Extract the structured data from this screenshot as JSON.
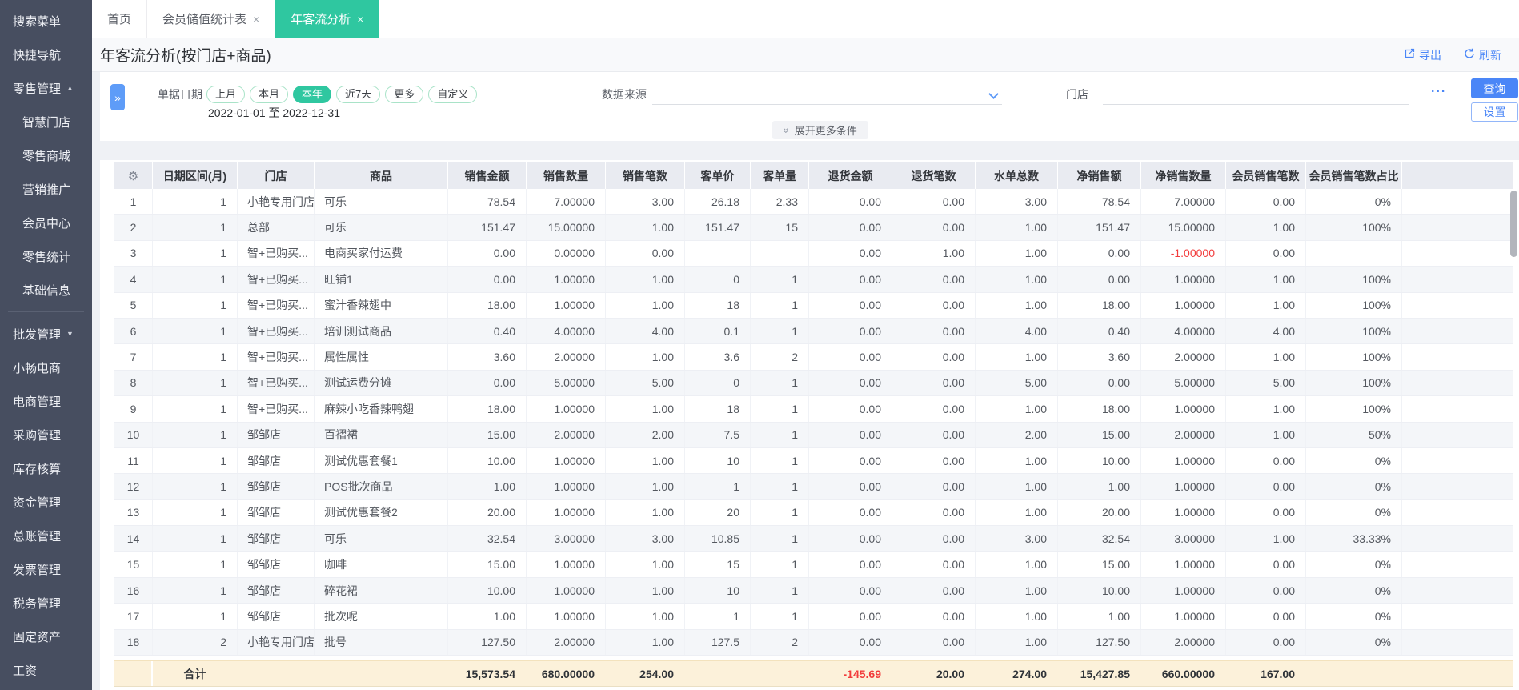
{
  "icons": {
    "close": "×",
    "gear": "⚙",
    "collapse": "»",
    "double_chevron_down": "»"
  },
  "colors": {
    "accent_green": "#2fc7a0",
    "accent_blue": "#4a86f7",
    "negative_red": "#f23c3c",
    "total_row_bg": "#fcf1da",
    "sidebar_bg": "#474e60"
  },
  "sidebar": {
    "items": [
      {
        "label": "搜索菜单"
      },
      {
        "label": "快捷导航"
      },
      {
        "label": "零售管理",
        "arrow": "up"
      },
      {
        "label": "智慧门店",
        "sub": true
      },
      {
        "label": "零售商城",
        "sub": true
      },
      {
        "label": "营销推广",
        "sub": true
      },
      {
        "label": "会员中心",
        "sub": true
      },
      {
        "label": "零售统计",
        "sub": true
      },
      {
        "label": "基础信息",
        "sub": true
      },
      {
        "divider": true
      },
      {
        "label": "批发管理",
        "arrow": "down"
      },
      {
        "label": "小畅电商"
      },
      {
        "label": "电商管理"
      },
      {
        "label": "采购管理"
      },
      {
        "label": "库存核算"
      },
      {
        "label": "资金管理"
      },
      {
        "label": "总账管理"
      },
      {
        "label": "发票管理"
      },
      {
        "label": "税务管理"
      },
      {
        "label": "固定资产"
      },
      {
        "label": "工资"
      }
    ]
  },
  "tabs": [
    {
      "label": "首页",
      "closable": false,
      "active": false
    },
    {
      "label": "会员储值统计表",
      "closable": true,
      "active": false
    },
    {
      "label": "年客流分析",
      "closable": true,
      "active": true
    }
  ],
  "page": {
    "title": "年客流分析(按门店+商品)",
    "export_label": "导出",
    "refresh_label": "刷新"
  },
  "filters": {
    "date_label": "单据日期",
    "date_pills": [
      {
        "label": "上月"
      },
      {
        "label": "本月"
      },
      {
        "label": "本年",
        "selected": true
      },
      {
        "label": "近7天"
      },
      {
        "label": "更多"
      },
      {
        "label": "自定义"
      }
    ],
    "date_range": "2022-01-01 至 2022-12-31",
    "source_label": "数据来源",
    "source_value": "",
    "store_label": "门店",
    "store_value": "",
    "more_ellipsis": "...",
    "search_label": "查询",
    "settings_label": "设置",
    "expand_label": "展开更多条件"
  },
  "table": {
    "columns": [
      "",
      "日期区间(月)",
      "门店",
      "商品",
      "销售金额",
      "销售数量",
      "销售笔数",
      "客单价",
      "客单量",
      "退货金额",
      "退货笔数",
      "水单总数",
      "净销售额",
      "净销售数量",
      "会员销售笔数",
      "会员销售笔数占比"
    ],
    "rows": [
      [
        "1",
        "1",
        "小艳专用门店",
        "可乐",
        "78.54",
        "7.00000",
        "3.00",
        "26.18",
        "2.33",
        "0.00",
        "0.00",
        "3.00",
        "78.54",
        "7.00000",
        "0.00",
        "0%"
      ],
      [
        "2",
        "1",
        "总部",
        "可乐",
        "151.47",
        "15.00000",
        "1.00",
        "151.47",
        "15",
        "0.00",
        "0.00",
        "1.00",
        "151.47",
        "15.00000",
        "1.00",
        "100%"
      ],
      [
        "3",
        "1",
        "智+已购买...",
        "电商买家付运费",
        "0.00",
        "0.00000",
        "0.00",
        "",
        "",
        "0.00",
        "1.00",
        "1.00",
        "0.00",
        {
          "v": "-1.00000",
          "red": true
        },
        "0.00",
        ""
      ],
      [
        "4",
        "1",
        "智+已购买...",
        "旺铺1",
        "0.00",
        "1.00000",
        "1.00",
        "0",
        "1",
        "0.00",
        "0.00",
        "1.00",
        "0.00",
        "1.00000",
        "1.00",
        "100%"
      ],
      [
        "5",
        "1",
        "智+已购买...",
        "蜜汁香辣翅中",
        "18.00",
        "1.00000",
        "1.00",
        "18",
        "1",
        "0.00",
        "0.00",
        "1.00",
        "18.00",
        "1.00000",
        "1.00",
        "100%"
      ],
      [
        "6",
        "1",
        "智+已购买...",
        "培训测试商品",
        "0.40",
        "4.00000",
        "4.00",
        "0.1",
        "1",
        "0.00",
        "0.00",
        "4.00",
        "0.40",
        "4.00000",
        "4.00",
        "100%"
      ],
      [
        "7",
        "1",
        "智+已购买...",
        "属性属性",
        "3.60",
        "2.00000",
        "1.00",
        "3.6",
        "2",
        "0.00",
        "0.00",
        "1.00",
        "3.60",
        "2.00000",
        "1.00",
        "100%"
      ],
      [
        "8",
        "1",
        "智+已购买...",
        "测试运费分摊",
        "0.00",
        "5.00000",
        "5.00",
        "0",
        "1",
        "0.00",
        "0.00",
        "5.00",
        "0.00",
        "5.00000",
        "5.00",
        "100%"
      ],
      [
        "9",
        "1",
        "智+已购买...",
        "麻辣小吃香辣鸭翅",
        "18.00",
        "1.00000",
        "1.00",
        "18",
        "1",
        "0.00",
        "0.00",
        "1.00",
        "18.00",
        "1.00000",
        "1.00",
        "100%"
      ],
      [
        "10",
        "1",
        "邹邹店",
        "百褶裙",
        "15.00",
        "2.00000",
        "2.00",
        "7.5",
        "1",
        "0.00",
        "0.00",
        "2.00",
        "15.00",
        "2.00000",
        "1.00",
        "50%"
      ],
      [
        "11",
        "1",
        "邹邹店",
        "测试优惠套餐1",
        "10.00",
        "1.00000",
        "1.00",
        "10",
        "1",
        "0.00",
        "0.00",
        "1.00",
        "10.00",
        "1.00000",
        "0.00",
        "0%"
      ],
      [
        "12",
        "1",
        "邹邹店",
        "POS批次商品",
        "1.00",
        "1.00000",
        "1.00",
        "1",
        "1",
        "0.00",
        "0.00",
        "1.00",
        "1.00",
        "1.00000",
        "0.00",
        "0%"
      ],
      [
        "13",
        "1",
        "邹邹店",
        "测试优惠套餐2",
        "20.00",
        "1.00000",
        "1.00",
        "20",
        "1",
        "0.00",
        "0.00",
        "1.00",
        "20.00",
        "1.00000",
        "0.00",
        "0%"
      ],
      [
        "14",
        "1",
        "邹邹店",
        "可乐",
        "32.54",
        "3.00000",
        "3.00",
        "10.85",
        "1",
        "0.00",
        "0.00",
        "3.00",
        "32.54",
        "3.00000",
        "1.00",
        "33.33%"
      ],
      [
        "15",
        "1",
        "邹邹店",
        "咖啡",
        "15.00",
        "1.00000",
        "1.00",
        "15",
        "1",
        "0.00",
        "0.00",
        "1.00",
        "15.00",
        "1.00000",
        "0.00",
        "0%"
      ],
      [
        "16",
        "1",
        "邹邹店",
        "碎花裙",
        "10.00",
        "1.00000",
        "1.00",
        "10",
        "1",
        "0.00",
        "0.00",
        "1.00",
        "10.00",
        "1.00000",
        "0.00",
        "0%"
      ],
      [
        "17",
        "1",
        "邹邹店",
        "批次呢",
        "1.00",
        "1.00000",
        "1.00",
        "1",
        "1",
        "0.00",
        "0.00",
        "1.00",
        "1.00",
        "1.00000",
        "0.00",
        "0%"
      ],
      [
        "18",
        "2",
        "小艳专用门店",
        "批号",
        "127.50",
        "2.00000",
        "1.00",
        "127.5",
        "2",
        "0.00",
        "0.00",
        "1.00",
        "127.50",
        "2.00000",
        "0.00",
        "0%"
      ]
    ],
    "total_row": [
      "",
      "合计",
      "",
      "",
      "15,573.54",
      "680.00000",
      "254.00",
      "",
      "",
      {
        "v": "-145.69",
        "red": true
      },
      "20.00",
      "274.00",
      "15,427.85",
      "660.00000",
      "167.00",
      ""
    ]
  }
}
